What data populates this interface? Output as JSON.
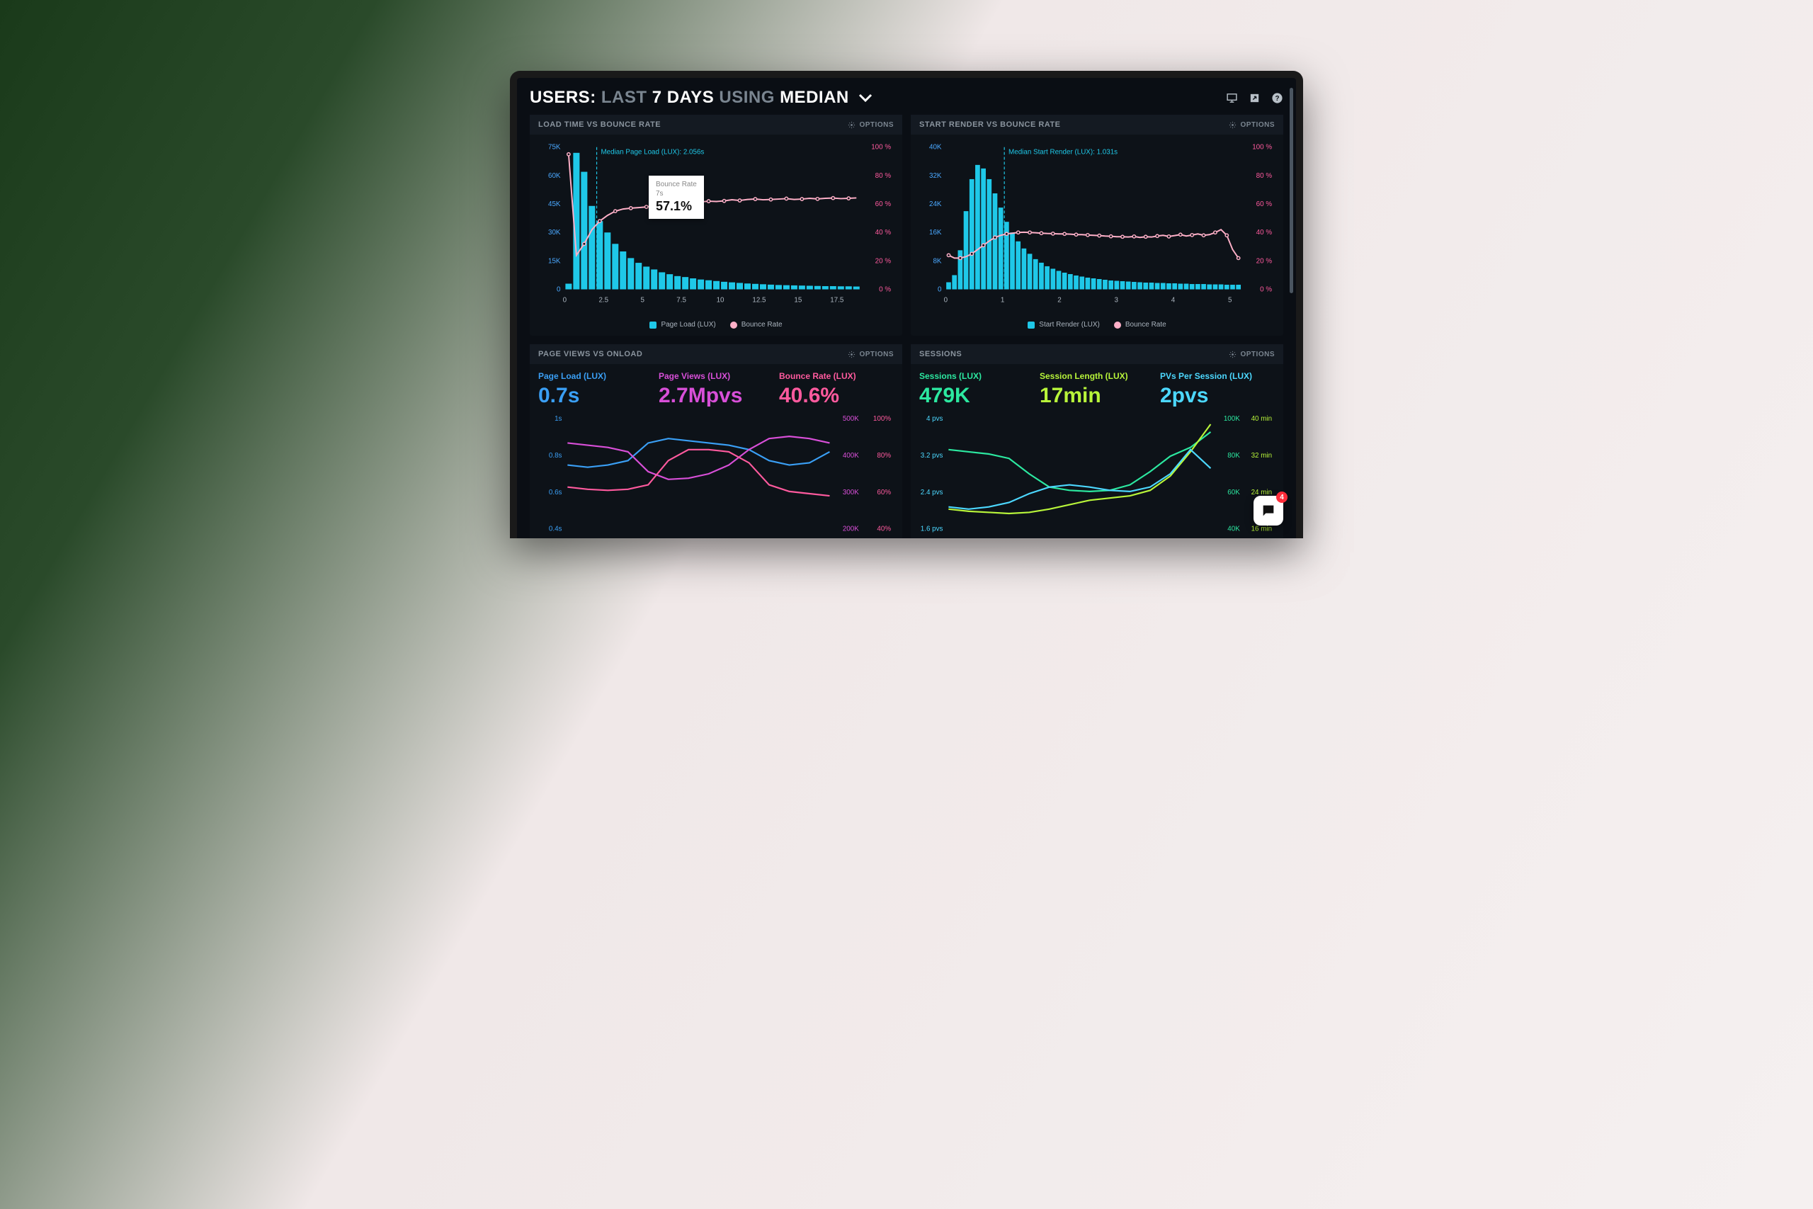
{
  "header": {
    "prefix": "USERS:",
    "word_last": "LAST",
    "word_days": "7 DAYS",
    "word_using": "USING",
    "word_median": "MEDIAN"
  },
  "options_label": "OPTIONS",
  "colors": {
    "bg": "#0a0e14",
    "panel": "#0d1218",
    "panel_head": "#141a22",
    "bar": "#1fc8e8",
    "bounce": "#ffb0c8",
    "blue": "#3a9ff5",
    "magenta": "#d84fd8",
    "pink": "#ff5a9e",
    "green": "#2ce8a0",
    "lime": "#b8f53a",
    "sky": "#4cd8ff",
    "text_dim": "#8a949e"
  },
  "panel1": {
    "title": "LOAD TIME VS BOUNCE RATE",
    "median_label": "Median Page Load (LUX): 2.056s",
    "median_x": 2.056,
    "tooltip_l1": "Bounce Rate",
    "tooltip_l2": "7s",
    "tooltip_val": "57.1%",
    "chart": {
      "type": "bar+line",
      "y_left": {
        "min": 0,
        "max": 75000,
        "ticks": [
          0,
          15000,
          30000,
          45000,
          60000,
          75000
        ],
        "labels": [
          "0",
          "15K",
          "30K",
          "45K",
          "60K",
          "75K"
        ],
        "color": "#4aa8ff"
      },
      "y_right": {
        "min": 0,
        "max": 100,
        "ticks": [
          0,
          20,
          40,
          60,
          80,
          100
        ],
        "labels": [
          "0 %",
          "20 %",
          "40 %",
          "60 %",
          "80 %",
          "100 %"
        ],
        "color": "#ff5a9e"
      },
      "x": {
        "min": 0,
        "max": 19,
        "ticks": [
          0,
          2.5,
          5,
          7.5,
          10,
          12.5,
          15,
          17.5
        ]
      },
      "bars": [
        3,
        72,
        62,
        44,
        36,
        30,
        24,
        20,
        16.5,
        14,
        12,
        10.5,
        9,
        8,
        7,
        6.5,
        5.8,
        5.2,
        4.8,
        4.4,
        4,
        3.7,
        3.4,
        3.1,
        2.9,
        2.7,
        2.5,
        2.3,
        2.2,
        2.1,
        2,
        1.9,
        1.8,
        1.7,
        1.7,
        1.6,
        1.6,
        1.5
      ],
      "line": [
        95,
        24,
        32,
        42,
        48,
        52,
        55,
        56.5,
        57.1,
        57.5,
        58,
        58.8,
        59,
        59.2,
        59.5,
        60,
        61,
        61.5,
        62,
        61.8,
        62.2,
        63,
        62.5,
        63.2,
        63.5,
        63,
        63.2,
        63.5,
        63.8,
        63.2,
        63.5,
        64,
        63.6,
        64,
        64.2,
        63.8,
        64,
        64.3
      ]
    },
    "legend": [
      "Page Load (LUX)",
      "Bounce Rate"
    ]
  },
  "panel2": {
    "title": "START RENDER VS BOUNCE RATE",
    "median_label": "Median Start Render (LUX): 1.031s",
    "median_x": 1.031,
    "chart": {
      "type": "bar+line",
      "y_left": {
        "min": 0,
        "max": 40000,
        "ticks": [
          0,
          8000,
          16000,
          24000,
          32000,
          40000
        ],
        "labels": [
          "0",
          "8K",
          "16K",
          "24K",
          "32K",
          "40K"
        ],
        "color": "#4aa8ff"
      },
      "y_right": {
        "min": 0,
        "max": 100,
        "ticks": [
          0,
          20,
          40,
          60,
          80,
          100
        ],
        "labels": [
          "0 %",
          "20 %",
          "40 %",
          "60 %",
          "80 %",
          "100 %"
        ],
        "color": "#ff5a9e"
      },
      "x": {
        "min": 0,
        "max": 5.2,
        "ticks": [
          0,
          1,
          2,
          3,
          4,
          5
        ]
      },
      "bars": [
        2,
        4,
        11,
        22,
        31,
        35,
        34,
        31,
        27,
        23,
        19,
        16,
        13.5,
        11.5,
        10,
        8.5,
        7.5,
        6.5,
        5.8,
        5.2,
        4.7,
        4.3,
        3.9,
        3.6,
        3.3,
        3.1,
        2.9,
        2.7,
        2.5,
        2.4,
        2.3,
        2.2,
        2.1,
        2,
        1.9,
        1.9,
        1.8,
        1.8,
        1.7,
        1.7,
        1.6,
        1.6,
        1.5,
        1.5,
        1.5,
        1.4,
        1.4,
        1.4,
        1.3,
        1.3,
        1.3
      ],
      "line": [
        24,
        22,
        22,
        23,
        25,
        28,
        31,
        34,
        36.5,
        38,
        39,
        39.5,
        40,
        40.2,
        40,
        39.8,
        39.5,
        39.3,
        39.2,
        39,
        39,
        38.8,
        38.5,
        38.5,
        38.2,
        38,
        37.8,
        37.5,
        37.3,
        37,
        37,
        36.8,
        37.2,
        36.5,
        37,
        36.8,
        37.5,
        38,
        37.2,
        37.8,
        38.5,
        37.5,
        38.2,
        39,
        38,
        38.5,
        40,
        42,
        38,
        28,
        22
      ]
    },
    "legend": [
      "Start Render (LUX)",
      "Bounce Rate"
    ]
  },
  "panel3": {
    "title": "PAGE VIEWS VS ONLOAD",
    "metrics": [
      {
        "label": "Page Load (LUX)",
        "value": "0.7s",
        "color": "#3a9ff5"
      },
      {
        "label": "Page Views (LUX)",
        "value": "2.7Mpvs",
        "color": "#d84fd8"
      },
      {
        "label": "Bounce Rate (LUX)",
        "value": "40.6%",
        "color": "#ff5a9e"
      }
    ],
    "chart": {
      "type": "multi-line",
      "y_left": {
        "ticks": [
          "1s",
          "0.8s",
          "0.6s",
          "0.4s"
        ],
        "color": "#3a9ff5"
      },
      "y_right1": {
        "ticks": [
          "500K",
          "400K",
          "300K",
          "200K"
        ],
        "color": "#d84fd8"
      },
      "y_right2": {
        "ticks": [
          "100%",
          "80%",
          "60%",
          "40%"
        ],
        "color": "#ff5a9e"
      },
      "lines": {
        "blue": [
          0.58,
          0.56,
          0.58,
          0.62,
          0.78,
          0.82,
          0.8,
          0.78,
          0.76,
          0.72,
          0.62,
          0.58,
          0.6,
          0.7
        ],
        "magenta": [
          0.78,
          0.76,
          0.74,
          0.7,
          0.52,
          0.45,
          0.46,
          0.5,
          0.58,
          0.72,
          0.82,
          0.84,
          0.82,
          0.78
        ],
        "pink": [
          0.38,
          0.36,
          0.35,
          0.36,
          0.4,
          0.62,
          0.72,
          0.72,
          0.7,
          0.6,
          0.4,
          0.34,
          0.32,
          0.3
        ]
      }
    }
  },
  "panel4": {
    "title": "SESSIONS",
    "metrics": [
      {
        "label": "Sessions (LUX)",
        "value": "479K",
        "color": "#2ce8a0"
      },
      {
        "label": "Session Length (LUX)",
        "value": "17min",
        "color": "#b8f53a"
      },
      {
        "label": "PVs Per Session (LUX)",
        "value": "2pvs",
        "color": "#4cd8ff"
      }
    ],
    "chart": {
      "type": "multi-line",
      "y_left": {
        "ticks": [
          "4 pvs",
          "3.2 pvs",
          "2.4 pvs",
          "1.6 pvs"
        ],
        "color": "#4cd8ff"
      },
      "y_right1": {
        "ticks": [
          "100K",
          "80K",
          "60K",
          "40K"
        ],
        "color": "#2ce8a0"
      },
      "y_right2": {
        "ticks": [
          "40 min",
          "32 min",
          "24 min",
          "16 min"
        ],
        "color": "#b8f53a"
      },
      "lines": {
        "green": [
          0.72,
          0.7,
          0.68,
          0.64,
          0.5,
          0.38,
          0.35,
          0.34,
          0.35,
          0.4,
          0.52,
          0.66,
          0.74,
          0.88
        ],
        "lime": [
          0.18,
          0.16,
          0.15,
          0.14,
          0.15,
          0.18,
          0.22,
          0.26,
          0.28,
          0.3,
          0.35,
          0.48,
          0.7,
          0.95
        ],
        "sky": [
          0.2,
          0.18,
          0.2,
          0.24,
          0.32,
          0.38,
          0.4,
          0.38,
          0.35,
          0.34,
          0.38,
          0.5,
          0.72,
          0.55
        ]
      }
    }
  },
  "chat_badge": "4"
}
